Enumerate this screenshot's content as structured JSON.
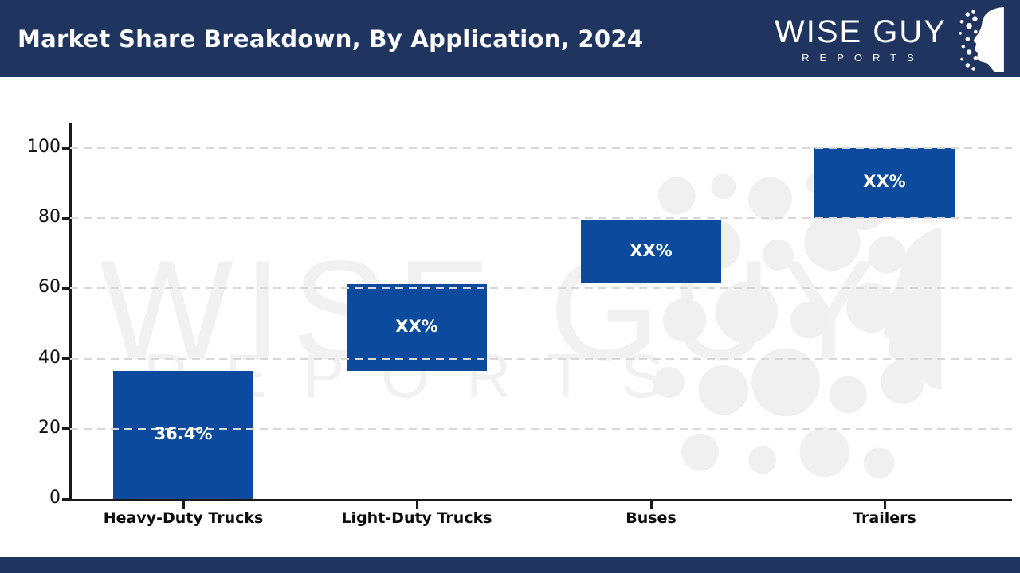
{
  "header": {
    "title": "Market Share Breakdown, By Application, 2024",
    "logo": {
      "line1": "WISE GUY",
      "line2": "REPORTS"
    }
  },
  "watermark": {
    "line1": "WISE GUY",
    "line2": "REPORTS"
  },
  "colors": {
    "header_bg": "#1f3560",
    "bar": "#0b4a9c",
    "grid": "#d8d8d8",
    "watermark": "#f1f1f1"
  },
  "chart_data": {
    "type": "bar",
    "subtype": "floating-stacked-segments",
    "title": "Market Share Breakdown, By Application, 2024",
    "categories": [
      "Heavy-Duty Trucks",
      "Light-Duty Trucks",
      "Buses",
      "Trailers"
    ],
    "segments": [
      {
        "category": "Heavy-Duty Trucks",
        "start": 0,
        "end": 36.4,
        "label": "36.4%"
      },
      {
        "category": "Light-Duty Trucks",
        "start": 36.4,
        "end": 61.3,
        "label": "XX%"
      },
      {
        "category": "Buses",
        "start": 61.4,
        "end": 79.4,
        "label": "XX%"
      },
      {
        "category": "Trailers",
        "start": 80.0,
        "end": 100.0,
        "label": "XX%"
      }
    ],
    "xlabel": "",
    "ylabel": "",
    "y_ticks": [
      0,
      20,
      40,
      60,
      80,
      100
    ],
    "ylim": [
      0,
      105
    ],
    "grid": "horizontal-dashed",
    "grid_above_bars": true,
    "legend": "none"
  }
}
